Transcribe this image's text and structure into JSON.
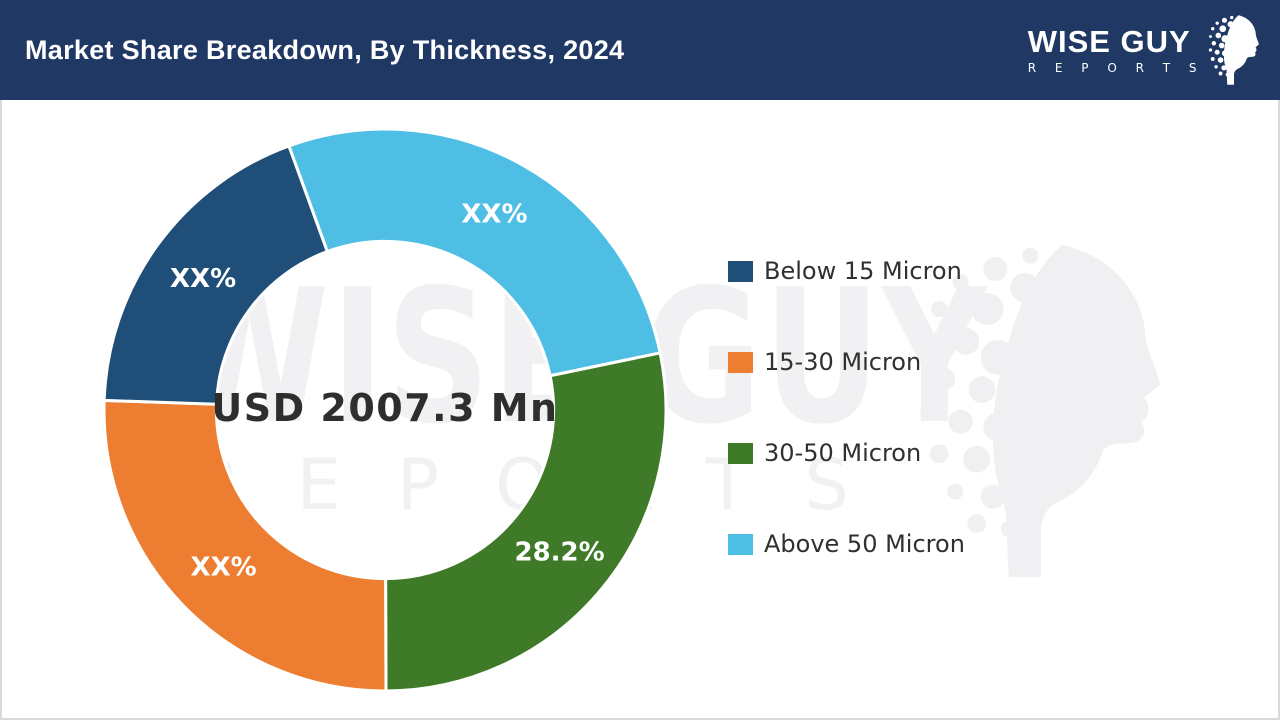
{
  "header": {
    "title": "Market Share Breakdown, By Thickness, 2024",
    "bg_color": "#1F3864",
    "logo": {
      "line1": "WISE GUY",
      "line2": "R E P O R T S"
    }
  },
  "watermark": {
    "line1": "WISE GUY",
    "line2": "REPORTS"
  },
  "chart_data": {
    "type": "pie",
    "donut": true,
    "hole_ratio": 0.6,
    "start_angle_deg": -20,
    "direction": "clockwise",
    "title": "Market Share Breakdown, By Thickness, 2024",
    "center_label": "USD 2007.3 Mn",
    "legend_position": "right",
    "slices": [
      {
        "label": "Above 50 Micron",
        "value_pct": 27.3,
        "display_label": "XX%",
        "color": "#4FBEE4"
      },
      {
        "label": "30-50 Micron",
        "value_pct": 28.2,
        "display_label": "28.2%",
        "color": "#3F7A28"
      },
      {
        "label": "15-30 Micron",
        "value_pct": 25.6,
        "display_label": "XX%",
        "color": "#ED7D31"
      },
      {
        "label": "Below 15 Micron",
        "value_pct": 18.9,
        "display_label": "XX%",
        "color": "#1F4E79"
      }
    ]
  },
  "legend": {
    "items": [
      {
        "label": "Below 15 Micron",
        "color": "#1F4E79"
      },
      {
        "label": "15-30 Micron",
        "color": "#ED7D31"
      },
      {
        "label": "30-50 Micron",
        "color": "#3F7A28"
      },
      {
        "label": "Above 50 Micron",
        "color": "#4FBEE4"
      }
    ]
  }
}
